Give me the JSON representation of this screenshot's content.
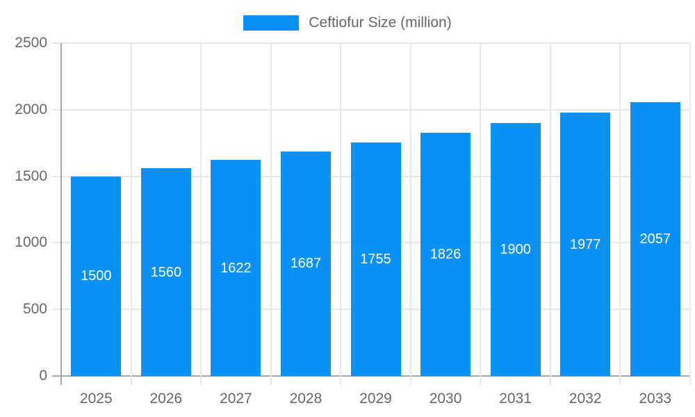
{
  "legend": {
    "label": "Ceftiofur Size (million)"
  },
  "chart_data": {
    "type": "bar",
    "title": "Ceftiofur Size (million)",
    "categories": [
      "2025",
      "2026",
      "2027",
      "2028",
      "2029",
      "2030",
      "2031",
      "2032",
      "2033"
    ],
    "series": [
      {
        "name": "Ceftiofur Size (million)",
        "values": [
          1500,
          1560,
          1622,
          1687,
          1755,
          1826,
          1900,
          1977,
          2057
        ]
      }
    ],
    "xlabel": "",
    "ylabel": "",
    "ylim": [
      0,
      2500
    ],
    "yticks": [
      0,
      500,
      1000,
      1500,
      2000,
      2500
    ],
    "grid": true,
    "legend_position": "top",
    "value_labels": "inside-middle"
  },
  "style": {
    "bar_color": "#0a91f5",
    "grid_color": "#e6e6e6",
    "axis_color": "#a6a6a6",
    "text_color": "#666666",
    "bar_label_color": "#ffffff",
    "background": "#ffffff"
  }
}
